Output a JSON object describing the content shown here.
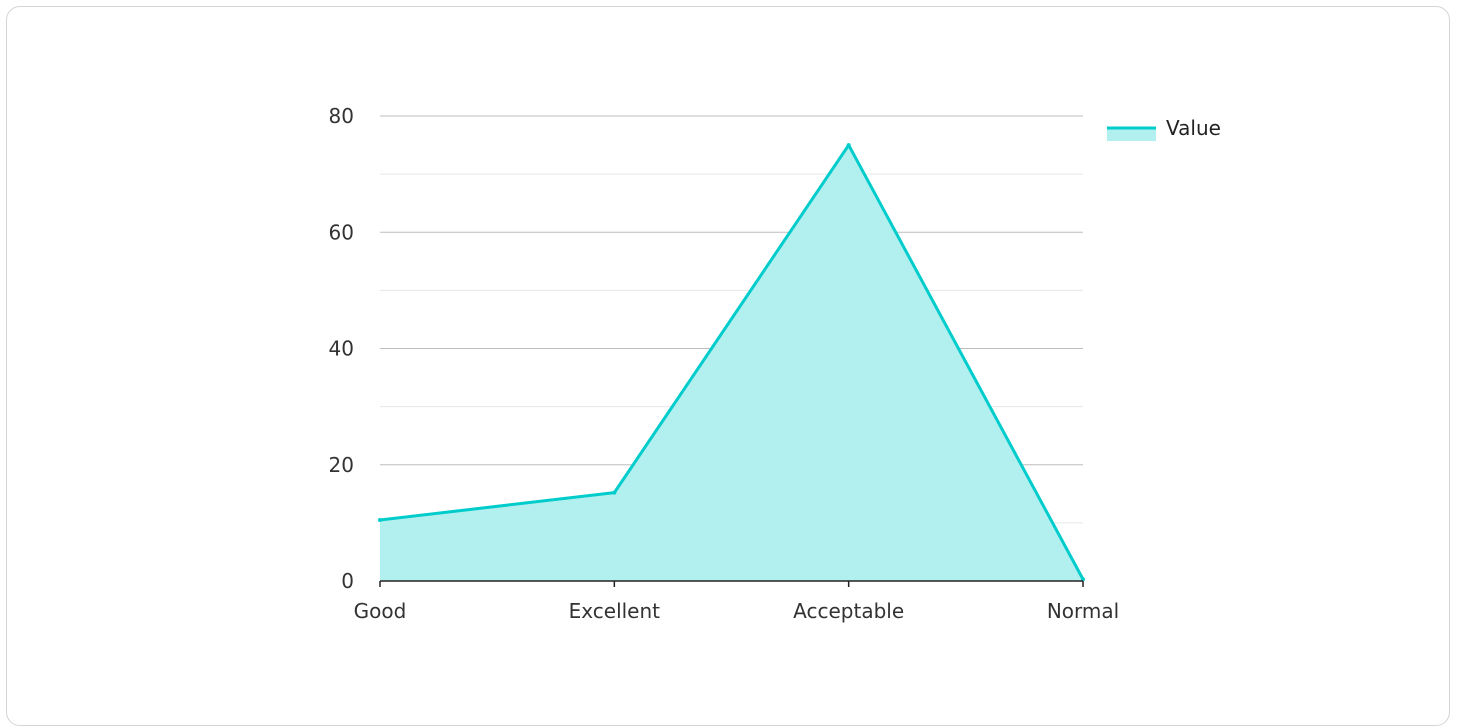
{
  "chart_data": {
    "type": "area",
    "categories": [
      "Good",
      "Excellent",
      "Acceptable",
      "Normal"
    ],
    "series": [
      {
        "name": "Value",
        "values": [
          10.5,
          15.2,
          75,
          0.3
        ]
      }
    ],
    "ylim": [
      0,
      80
    ],
    "yticks": [
      0,
      20,
      40,
      60,
      80
    ],
    "grid": true,
    "legend": "top-right",
    "colors": {
      "line": "#00cccc",
      "fill": "#b2efef",
      "major_grid": "#bdbdbd",
      "minor_grid": "#e6e6e6",
      "axis": "#222222"
    }
  }
}
